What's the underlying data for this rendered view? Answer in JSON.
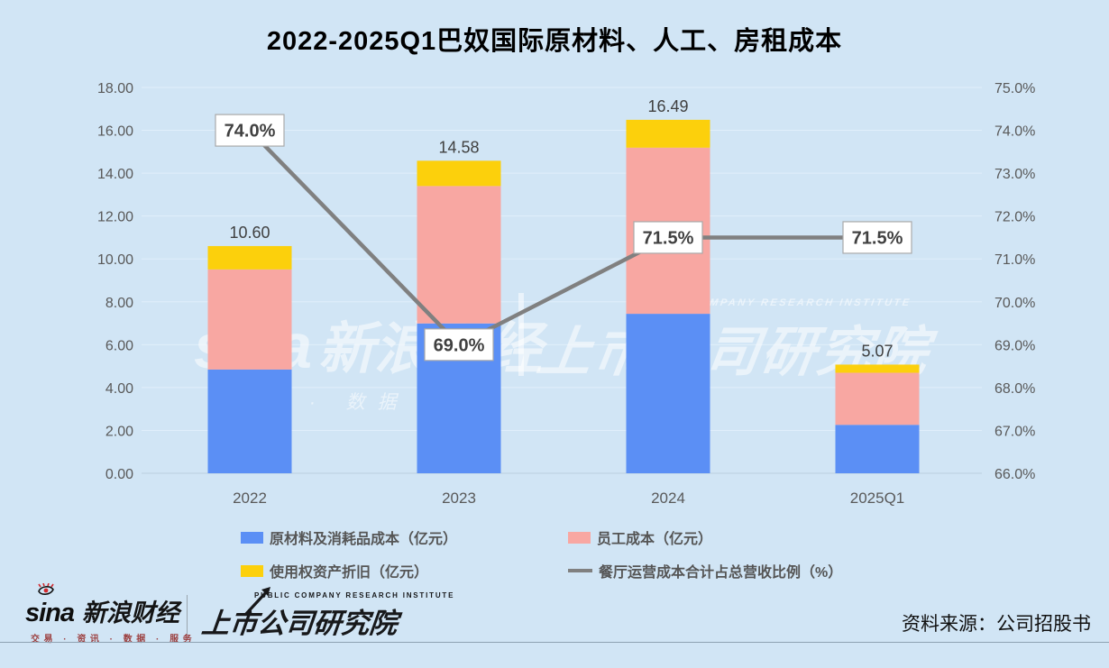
{
  "title": "2022-2025Q1巴奴国际原材料、人工、房租成本",
  "chart_data": {
    "type": "bar",
    "stacked": true,
    "title": "2022-2025Q1巴奴国际原材料、人工、房租成本",
    "categories": [
      "2022",
      "2023",
      "2024",
      "2025Q1"
    ],
    "series": [
      {
        "name": "原材料及消耗品成本（亿元）",
        "kind": "bar",
        "color": "#5B8FF5",
        "values": [
          4.84,
          6.99,
          7.44,
          2.26
        ]
      },
      {
        "name": "员工成本（亿元）",
        "kind": "bar",
        "color": "#F8A7A2",
        "values": [
          4.67,
          6.41,
          7.75,
          2.43
        ]
      },
      {
        "name": "使用权资产折旧（亿元）",
        "kind": "bar",
        "color": "#FCD00C",
        "values": [
          1.09,
          1.18,
          1.3,
          0.38
        ]
      },
      {
        "name": "餐厅运营成本合计占总营收比例（%）",
        "kind": "line",
        "color": "#808080",
        "values": [
          74.0,
          69.0,
          71.5,
          71.5
        ],
        "labels": [
          "74.0%",
          "69.0%",
          "71.5%",
          "71.5%"
        ]
      }
    ],
    "bar_totals": [
      10.6,
      14.58,
      16.49,
      5.07
    ],
    "bar_total_labels": [
      "10.60",
      "14.58",
      "16.49",
      "5.07"
    ],
    "left_axis": {
      "min": 0,
      "max": 18,
      "step": 2,
      "labels": [
        "0.00",
        "2.00",
        "4.00",
        "6.00",
        "8.00",
        "10.00",
        "12.00",
        "14.00",
        "16.00",
        "18.00"
      ]
    },
    "right_axis": {
      "min": 66,
      "max": 75,
      "step": 1,
      "labels": [
        "66.0%",
        "67.0%",
        "68.0%",
        "69.0%",
        "70.0%",
        "71.0%",
        "72.0%",
        "73.0%",
        "74.0%",
        "75.0%"
      ]
    },
    "grid": true,
    "legend_position": "bottom"
  },
  "watermark": {
    "sina_latin": "sina",
    "sina_cn": "新浪财经",
    "sina_sub": "资讯 · 数据",
    "pcri_small": "PUBLIC COMPANY RESEARCH INSTITUTE",
    "pcri_main": "上市公司研究院"
  },
  "footer": {
    "sina_brand": "sina",
    "sina_brand_cn": "新浪财经",
    "sina_tagline": "交易 · 资讯 · 数据 · 服务",
    "pcri_small": "PUBLIC COMPANY RESEARCH INSTITUTE",
    "pcri_main": "上市公司研究院",
    "source_label": "资料来源：公司招股书"
  }
}
